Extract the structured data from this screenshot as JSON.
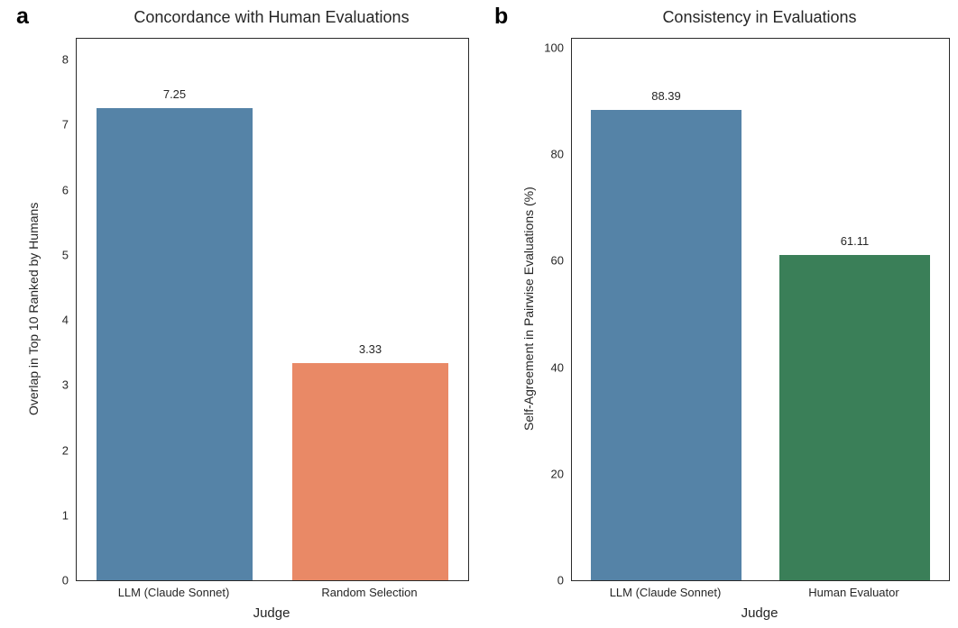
{
  "chart_data": [
    {
      "type": "bar",
      "panel_label": "a",
      "title": "Concordance with Human Evaluations",
      "xlabel": "Judge",
      "ylabel": "Overlap in Top 10 Ranked by Humans",
      "categories": [
        "LLM (Claude Sonnet)",
        "Random Selection"
      ],
      "values": [
        7.25,
        3.33
      ],
      "bar_value_labels": [
        "7.25",
        "3.33"
      ],
      "bar_colors": [
        "#5583a7",
        "#e98966"
      ],
      "yticks": [
        0,
        1,
        2,
        3,
        4,
        5,
        6,
        7,
        8
      ],
      "ylim": [
        0,
        8.32
      ],
      "grid": false,
      "legend": "none"
    },
    {
      "type": "bar",
      "panel_label": "b",
      "title": "Consistency in Evaluations",
      "xlabel": "Judge",
      "ylabel": "Self-Agreement in Pairwise Evaluations (%)",
      "categories": [
        "LLM (Claude Sonnet)",
        "Human Evaluator"
      ],
      "values": [
        88.39,
        61.11
      ],
      "bar_value_labels": [
        "88.39",
        "61.11"
      ],
      "bar_colors": [
        "#5583a7",
        "#3a7f58"
      ],
      "yticks": [
        0,
        20,
        40,
        60,
        80,
        100
      ],
      "ylim": [
        0,
        101.7
      ],
      "grid": false,
      "legend": "none"
    }
  ]
}
